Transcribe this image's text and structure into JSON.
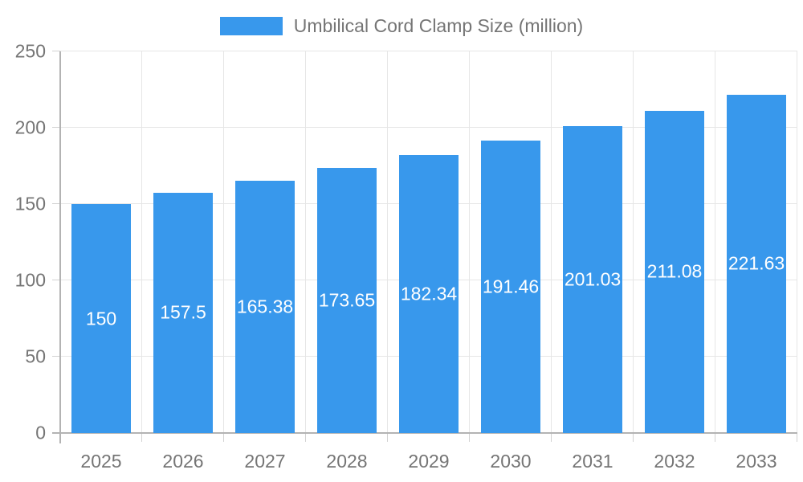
{
  "chart_data": {
    "type": "bar",
    "title": "Umbilical Cord Clamp Size (million)",
    "categories": [
      "2025",
      "2026",
      "2027",
      "2028",
      "2029",
      "2030",
      "2031",
      "2032",
      "2033"
    ],
    "values": [
      150,
      157.5,
      165.38,
      173.65,
      182.34,
      191.46,
      201.03,
      211.08,
      221.63
    ],
    "value_labels": [
      "150",
      "157.5",
      "165.38",
      "173.65",
      "182.34",
      "191.46",
      "201.03",
      "211.08",
      "221.63"
    ],
    "xlabel": "",
    "ylabel": "",
    "ylim": [
      0,
      250
    ],
    "yticks": [
      0,
      50,
      100,
      150,
      200,
      250
    ],
    "grid": true,
    "legend_position": "top",
    "colors": {
      "bar": "#3898EC",
      "tick_text": "#757575",
      "bar_label_text": "#FFFFFF",
      "axis_line": "#B3B3B3",
      "gridline": "#E6E6E6",
      "tick_mark": "#D2D2D2",
      "background": "#FFFFFF"
    }
  }
}
